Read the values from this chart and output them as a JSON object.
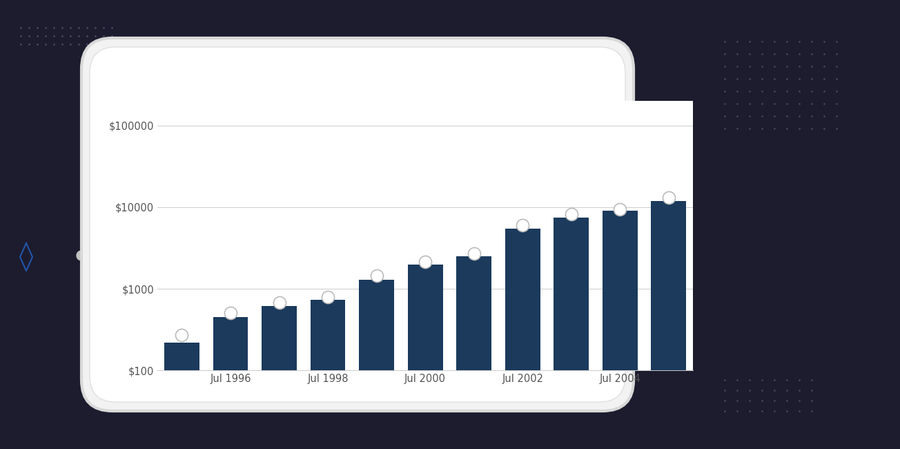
{
  "bar_values": [
    220,
    450,
    620,
    730,
    1300,
    2000,
    2500,
    5500,
    7500,
    9000,
    12000
  ],
  "dot_values": [
    270,
    510,
    680,
    790,
    1450,
    2150,
    2700,
    6000,
    8200,
    9500,
    13000
  ],
  "x_tick_labels": [
    "Jul 1996",
    "Jul 1998",
    "Jul 2000",
    "Jul 2002",
    "Jul 2004"
  ],
  "x_tick_positions": [
    1,
    3,
    5,
    7,
    9
  ],
  "ytick_labels": [
    "$100",
    "$1000",
    "$10000",
    "$100000"
  ],
  "ytick_values": [
    100,
    1000,
    10000,
    100000
  ],
  "bar_color": "#1b3a5c",
  "dot_fill_color": "#ffffff",
  "dot_edge_color": "#bbbbbb",
  "background_color": "#f0f0f0",
  "phone_color": "#f0f0f0",
  "phone_border_color": "#d0d0d0",
  "chart_bg": "#ffffff",
  "grid_color": "#cccccc",
  "tick_label_color": "#555555",
  "bar_width": 0.72,
  "ylim_min": 100,
  "ylim_max": 200000,
  "diamond_color": "#2255aa",
  "circle_color": "#cc4488",
  "dot_size": 13
}
